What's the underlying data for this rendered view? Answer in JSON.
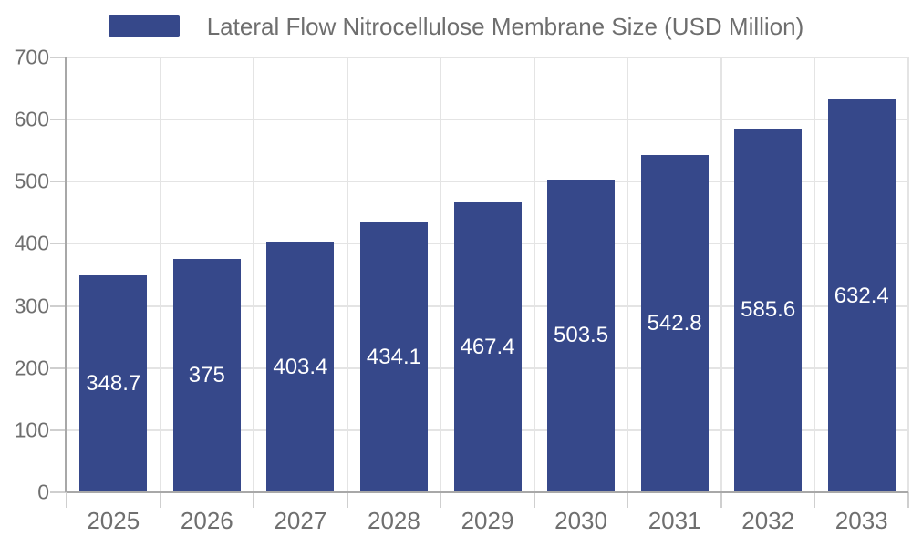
{
  "legend": {
    "label": "Lateral Flow Nitrocellulose Membrane Size (USD Million)"
  },
  "chart_data": {
    "type": "bar",
    "title": "Lateral Flow Nitrocellulose Membrane Size (USD Million)",
    "categories": [
      "2025",
      "2026",
      "2027",
      "2028",
      "2029",
      "2030",
      "2031",
      "2032",
      "2033"
    ],
    "values": [
      348.7,
      375,
      403.4,
      434.1,
      467.4,
      503.5,
      542.8,
      585.6,
      632.4
    ],
    "bar_labels": [
      "348.7",
      "375",
      "403.4",
      "434.1",
      "467.4",
      "503.5",
      "542.8",
      "585.6",
      "632.4"
    ],
    "xlabel": "",
    "ylabel": "",
    "ylim": [
      0,
      700
    ],
    "y_ticks": [
      0,
      100,
      200,
      300,
      400,
      500,
      600,
      700
    ],
    "grid": true,
    "legend_position": "top",
    "colors": {
      "bar": "#36488A",
      "grid": "#e4e4e4",
      "axis": "#a8a8a8",
      "tick": "#cfcfcf",
      "axis_text": "#6f6f6f",
      "legend_text": "#6e6e6e",
      "data_label": "#ffffff",
      "background": "#ffffff"
    }
  }
}
